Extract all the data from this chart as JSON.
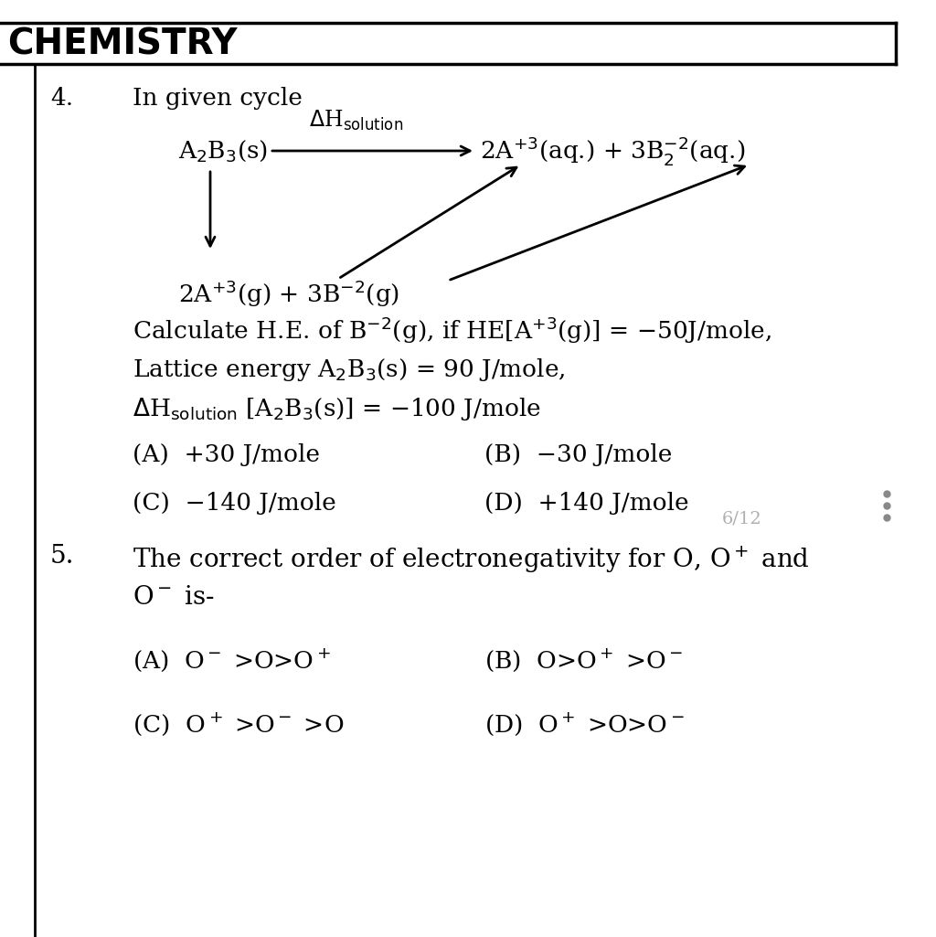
{
  "title": "CHEMISTRY",
  "background_color": "#ffffff",
  "text_color": "#000000",
  "figsize": [
    10.24,
    10.25
  ],
  "dpi": 100,
  "font_family": "serif",
  "title_fontsize": 28,
  "body_fontsize": 19,
  "small_fontsize": 14,
  "q4_number": "4.",
  "q4_intro": "In given cycle",
  "q4_optA": "(A)  +30 J/mole",
  "q4_optB": "(B)  −30 J/mole",
  "q4_optC": "(C)  −140 J/mole",
  "q4_optD": "(D)  +140 J/mole",
  "page_label": "6/12",
  "q5_number": "5.",
  "q5_text1": "The correct order of electronegativity for O, O$^+$ and",
  "q5_text2": "O$^-$ is-",
  "q5_optA": "(A)  O$^-$ >O>O$^+$",
  "q5_optB": "(B)  O>O$^+$ >O$^-$",
  "q5_optC": "(C)  O$^+$ >O$^-$ >O",
  "q5_optD": "(D)  O$^+$ >O>O$^-$"
}
